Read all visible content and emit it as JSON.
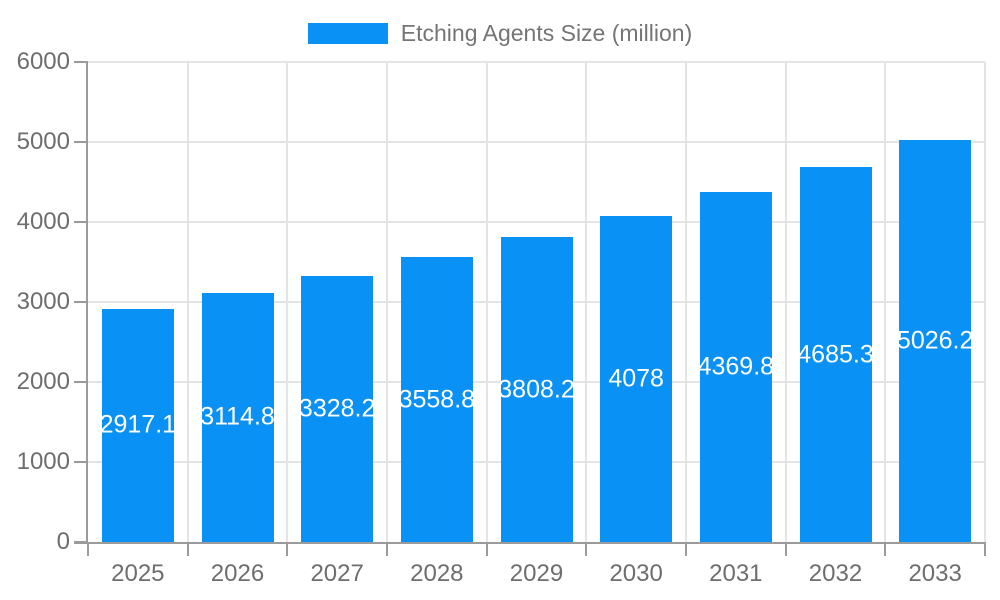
{
  "legend": {
    "label": "Etching Agents Size (million)"
  },
  "colors": {
    "bar": "#0A91F5",
    "grid": "#E4E4E4",
    "axis": "#9B9B9B",
    "tick": "#9B9B9B",
    "axis_text": "#6E6E6E",
    "legend_text": "#757575",
    "value_text": "#FFFFFF",
    "background": "#FFFFFF"
  },
  "chart_data": {
    "type": "bar",
    "title": "Etching Agents Size (million)",
    "categories": [
      "2025",
      "2026",
      "2027",
      "2028",
      "2029",
      "2030",
      "2031",
      "2032",
      "2033"
    ],
    "values": [
      2917.1,
      3114.8,
      3328.2,
      3558.8,
      3808.2,
      4078,
      4369.8,
      4685.3,
      5026.2
    ],
    "value_labels": [
      "2917.1",
      "3114.8",
      "3328.2",
      "3558.8",
      "3808.2",
      "4078",
      "4369.8",
      "4685.3",
      "5026.2"
    ],
    "xlabel": "",
    "ylabel": "",
    "ylim": [
      0,
      6000
    ],
    "yticks": [
      0,
      1000,
      2000,
      3000,
      4000,
      5000,
      6000
    ],
    "grid": true,
    "legend_position": "top",
    "value_label_position": "inside-center"
  }
}
